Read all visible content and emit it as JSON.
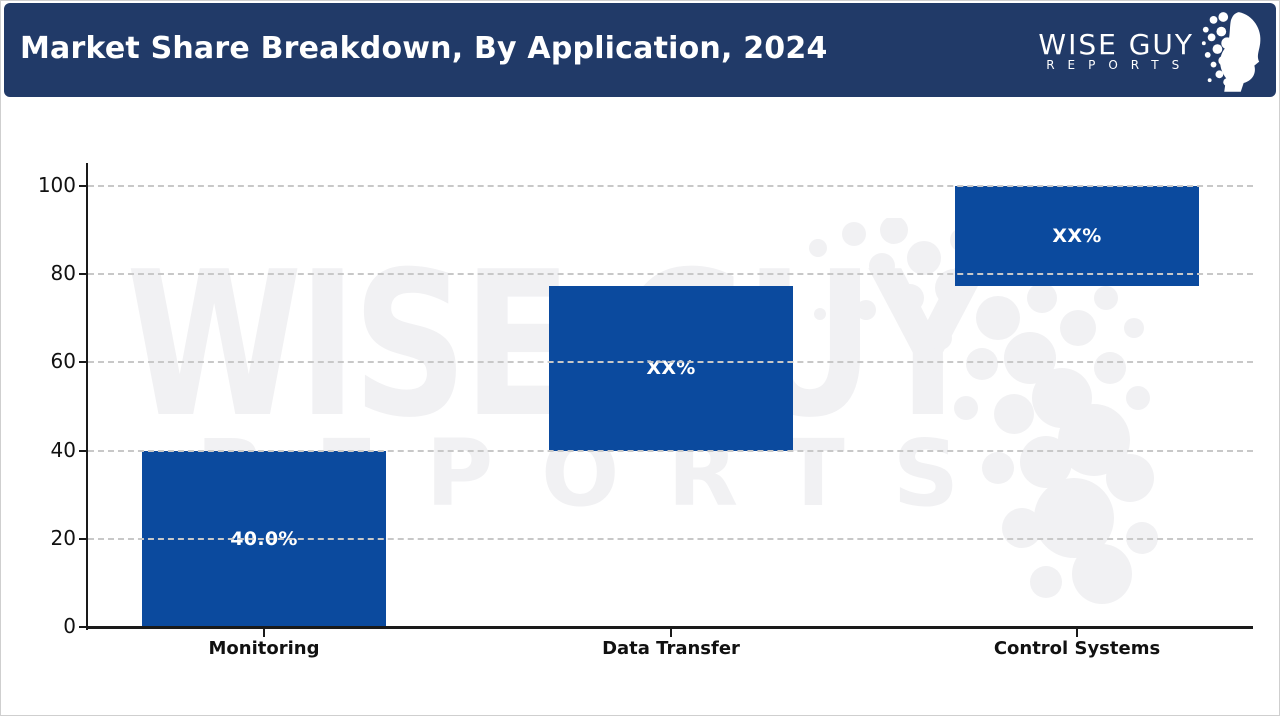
{
  "header": {
    "title": "Market Share Breakdown, By Application, 2024",
    "logo": {
      "line1": "WISE GUY",
      "line2": "REPORTS"
    }
  },
  "watermark": {
    "line1": "WISE GUY",
    "line2": "REPORTS"
  },
  "colors": {
    "header_bg": "#213a68",
    "bar": "#0b4a9e",
    "bar_label": "#ffffff",
    "grid": "#c8c8c8",
    "axis": "#1a1a1a",
    "tick_text": "#111111",
    "watermark": "#f1f1f3"
  },
  "chart_data": {
    "type": "bar",
    "variant": "waterfall",
    "title": "Market Share Breakdown, By Application, 2024",
    "categories": [
      "Monitoring",
      "Data Transfer",
      "Control Systems"
    ],
    "segments": [
      {
        "category": "Monitoring",
        "start": 0,
        "end": 40,
        "value_label": "40.0%"
      },
      {
        "category": "Data Transfer",
        "start": 40,
        "end": 77.3,
        "value_label": "XX%"
      },
      {
        "category": "Control Systems",
        "start": 77.3,
        "end": 100,
        "value_label": "XX%"
      }
    ],
    "yticks": [
      0,
      20,
      40,
      60,
      80,
      100
    ],
    "ylim": [
      0,
      105
    ],
    "xlabel": "",
    "ylabel": "",
    "grid": {
      "horizontal": true,
      "style": "dashed"
    },
    "legend": "none"
  }
}
